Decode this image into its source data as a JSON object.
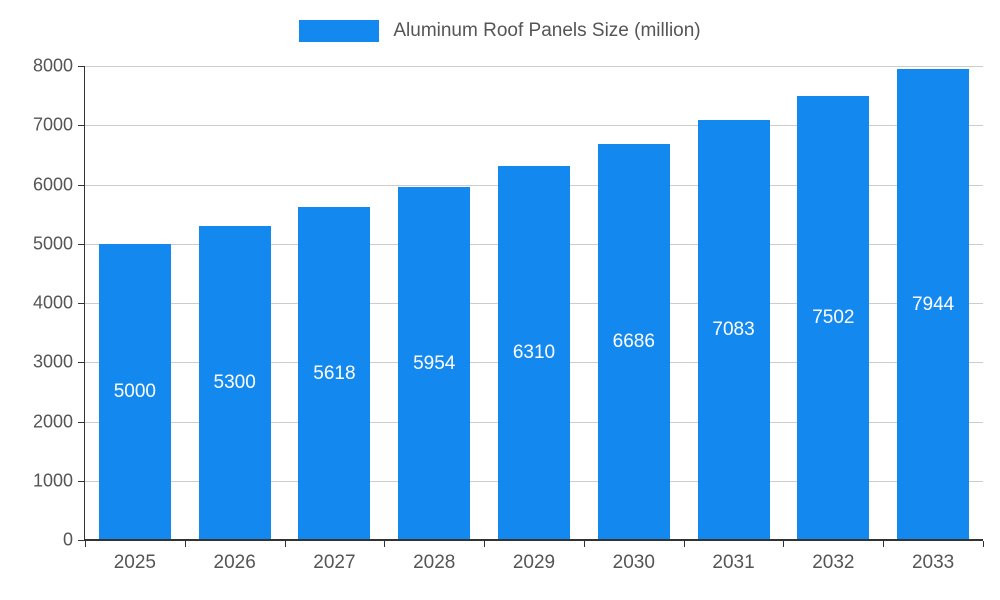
{
  "legend": {
    "label": "Aluminum Roof Panels Size (million)",
    "swatch_color": "#1389f0"
  },
  "chart_data": {
    "type": "bar",
    "title": "Aluminum Roof Panels Size (million)",
    "categories": [
      "2025",
      "2026",
      "2027",
      "2028",
      "2029",
      "2030",
      "2031",
      "2032",
      "2033"
    ],
    "values": [
      5000,
      5300,
      5618,
      5954,
      6310,
      6686,
      7083,
      7502,
      7944
    ],
    "xlabel": "",
    "ylabel": "",
    "ylim": [
      0,
      8000
    ],
    "ytick_step": 1000,
    "grid": true,
    "legend_position": "top",
    "bar_color": "#1389f0",
    "value_label_color": "#ffffff",
    "axis_text_color": "#555555",
    "gridline_color": "#cccccc",
    "axis_line_color": "#333333"
  }
}
